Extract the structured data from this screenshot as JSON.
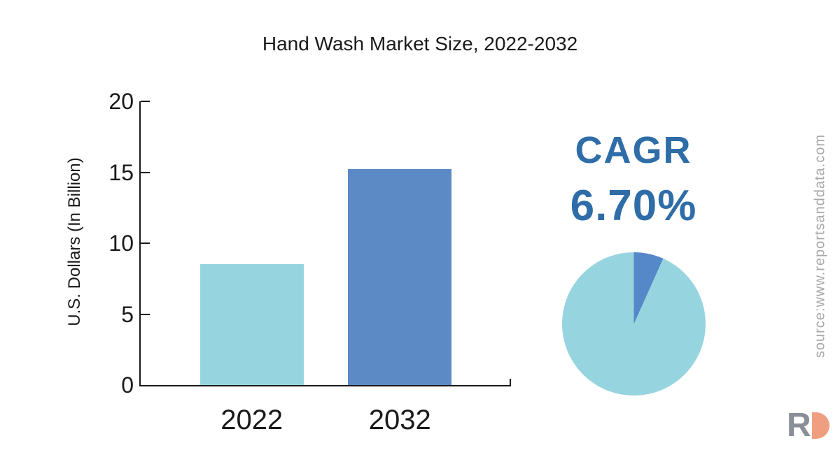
{
  "chart_data": [
    {
      "type": "bar",
      "title": "Hand Wash Market Size, 2022-2032",
      "categories": [
        "2022",
        "2032"
      ],
      "values": [
        8.5,
        15.2
      ],
      "xlabel": "",
      "ylabel": "U.S. Dollars (In Billion)",
      "ylim": [
        0,
        20
      ],
      "yticks": [
        0,
        5,
        10,
        15,
        20
      ],
      "bar_colors": [
        "#96d5e0",
        "#5b8ac4"
      ],
      "grid": false,
      "legend": false
    },
    {
      "type": "pie",
      "slices": [
        {
          "value": 6.7,
          "color": "#5588c9"
        },
        {
          "value": 93.3,
          "color": "#96d5e0"
        }
      ],
      "start_angle_deg": 0,
      "direction": "clockwise",
      "legend_position": "none"
    }
  ],
  "cagr": {
    "label": "CAGR",
    "value": "6.70%",
    "color": "#2e6da8"
  },
  "source": {
    "text": "source:www.reportsanddata.com",
    "color": "#a8a8a8"
  },
  "logo": {
    "letter": "R",
    "letter_color": "#8a8e96",
    "shape_color": "#ef9f80"
  }
}
